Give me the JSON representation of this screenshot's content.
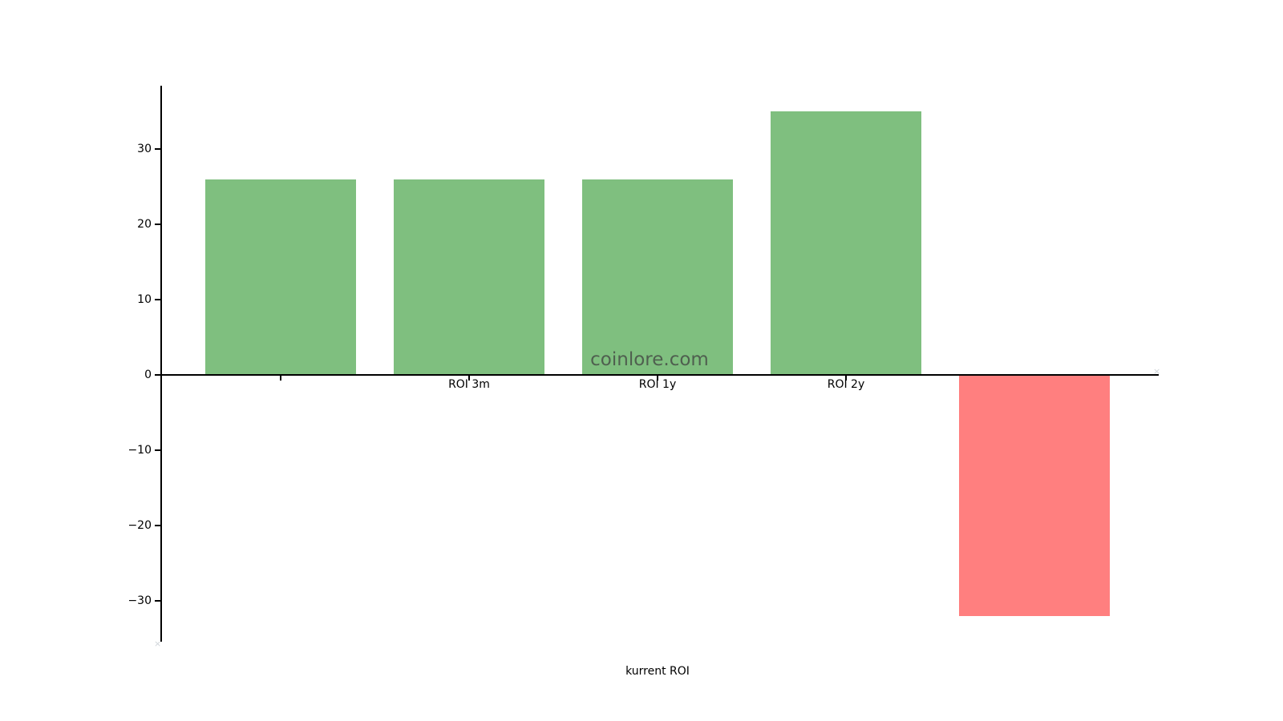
{
  "watermark": "coinlore.com",
  "chart_data": {
    "type": "bar",
    "title": "",
    "xlabel": "kurrent ROI",
    "ylabel": "",
    "categories": [
      "",
      "ROI 3m",
      "ROI 1y",
      "ROI 2y",
      ""
    ],
    "values": [
      26,
      26,
      26,
      35,
      -32
    ],
    "bar_colors": [
      "#7fbf7f",
      "#7fbf7f",
      "#7fbf7f",
      "#7fbf7f",
      "#ff7f7f"
    ],
    "xticks_shown": [
      true,
      true,
      true,
      true,
      false
    ],
    "yticks": [
      30,
      20,
      10,
      0,
      -10,
      -20,
      -30
    ],
    "ylim": [
      -35.4,
      38.4
    ],
    "grid": false,
    "legend": "none",
    "positive_color": "#7fbf7f",
    "negative_color": "#ff7f7f",
    "axis_color": "#000000",
    "watermark_color": "#404040",
    "background_color": "#ffffff"
  }
}
